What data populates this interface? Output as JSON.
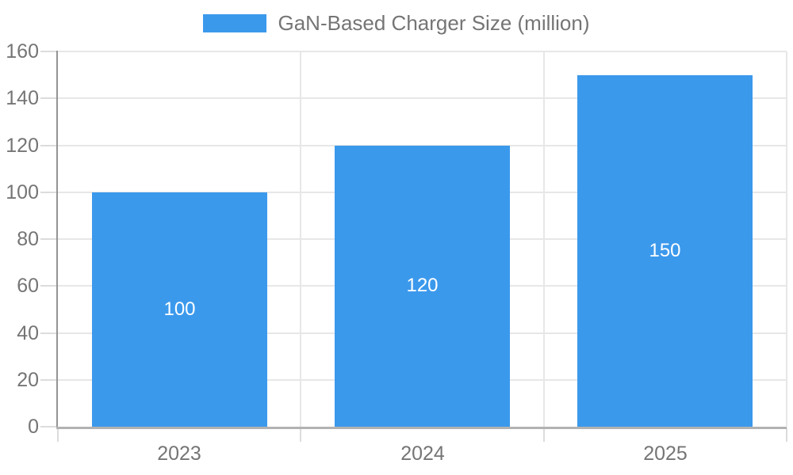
{
  "legend": {
    "label": "GaN-Based Charger Size (million)"
  },
  "colors": {
    "bar": "#3B99EC",
    "bar_label": "#FFFFFF",
    "axis_label": "#757575",
    "legend_text": "#757575",
    "grid_line": "#E7E7E7",
    "tick_line": "#DCDCDC",
    "y_axis_line": "#949494",
    "x_axis_line": "#B2B2B2",
    "background": "#FFFFFF"
  },
  "chart_data": {
    "type": "bar",
    "title": "GaN-Based Charger Size (million)",
    "series_name": "GaN-Based Charger Size (million)",
    "categories": [
      "2023",
      "2024",
      "2025"
    ],
    "values": [
      100,
      120,
      150
    ],
    "bar_labels": [
      "100",
      "120",
      "150"
    ],
    "bar_label_position": "inside-center",
    "xlabel": "",
    "ylabel": "",
    "ylim": [
      0,
      160
    ],
    "ytick_step": 20,
    "yticks": [
      0,
      20,
      40,
      60,
      80,
      100,
      120,
      140,
      160
    ],
    "grid": true,
    "legend_position": "top-center"
  }
}
